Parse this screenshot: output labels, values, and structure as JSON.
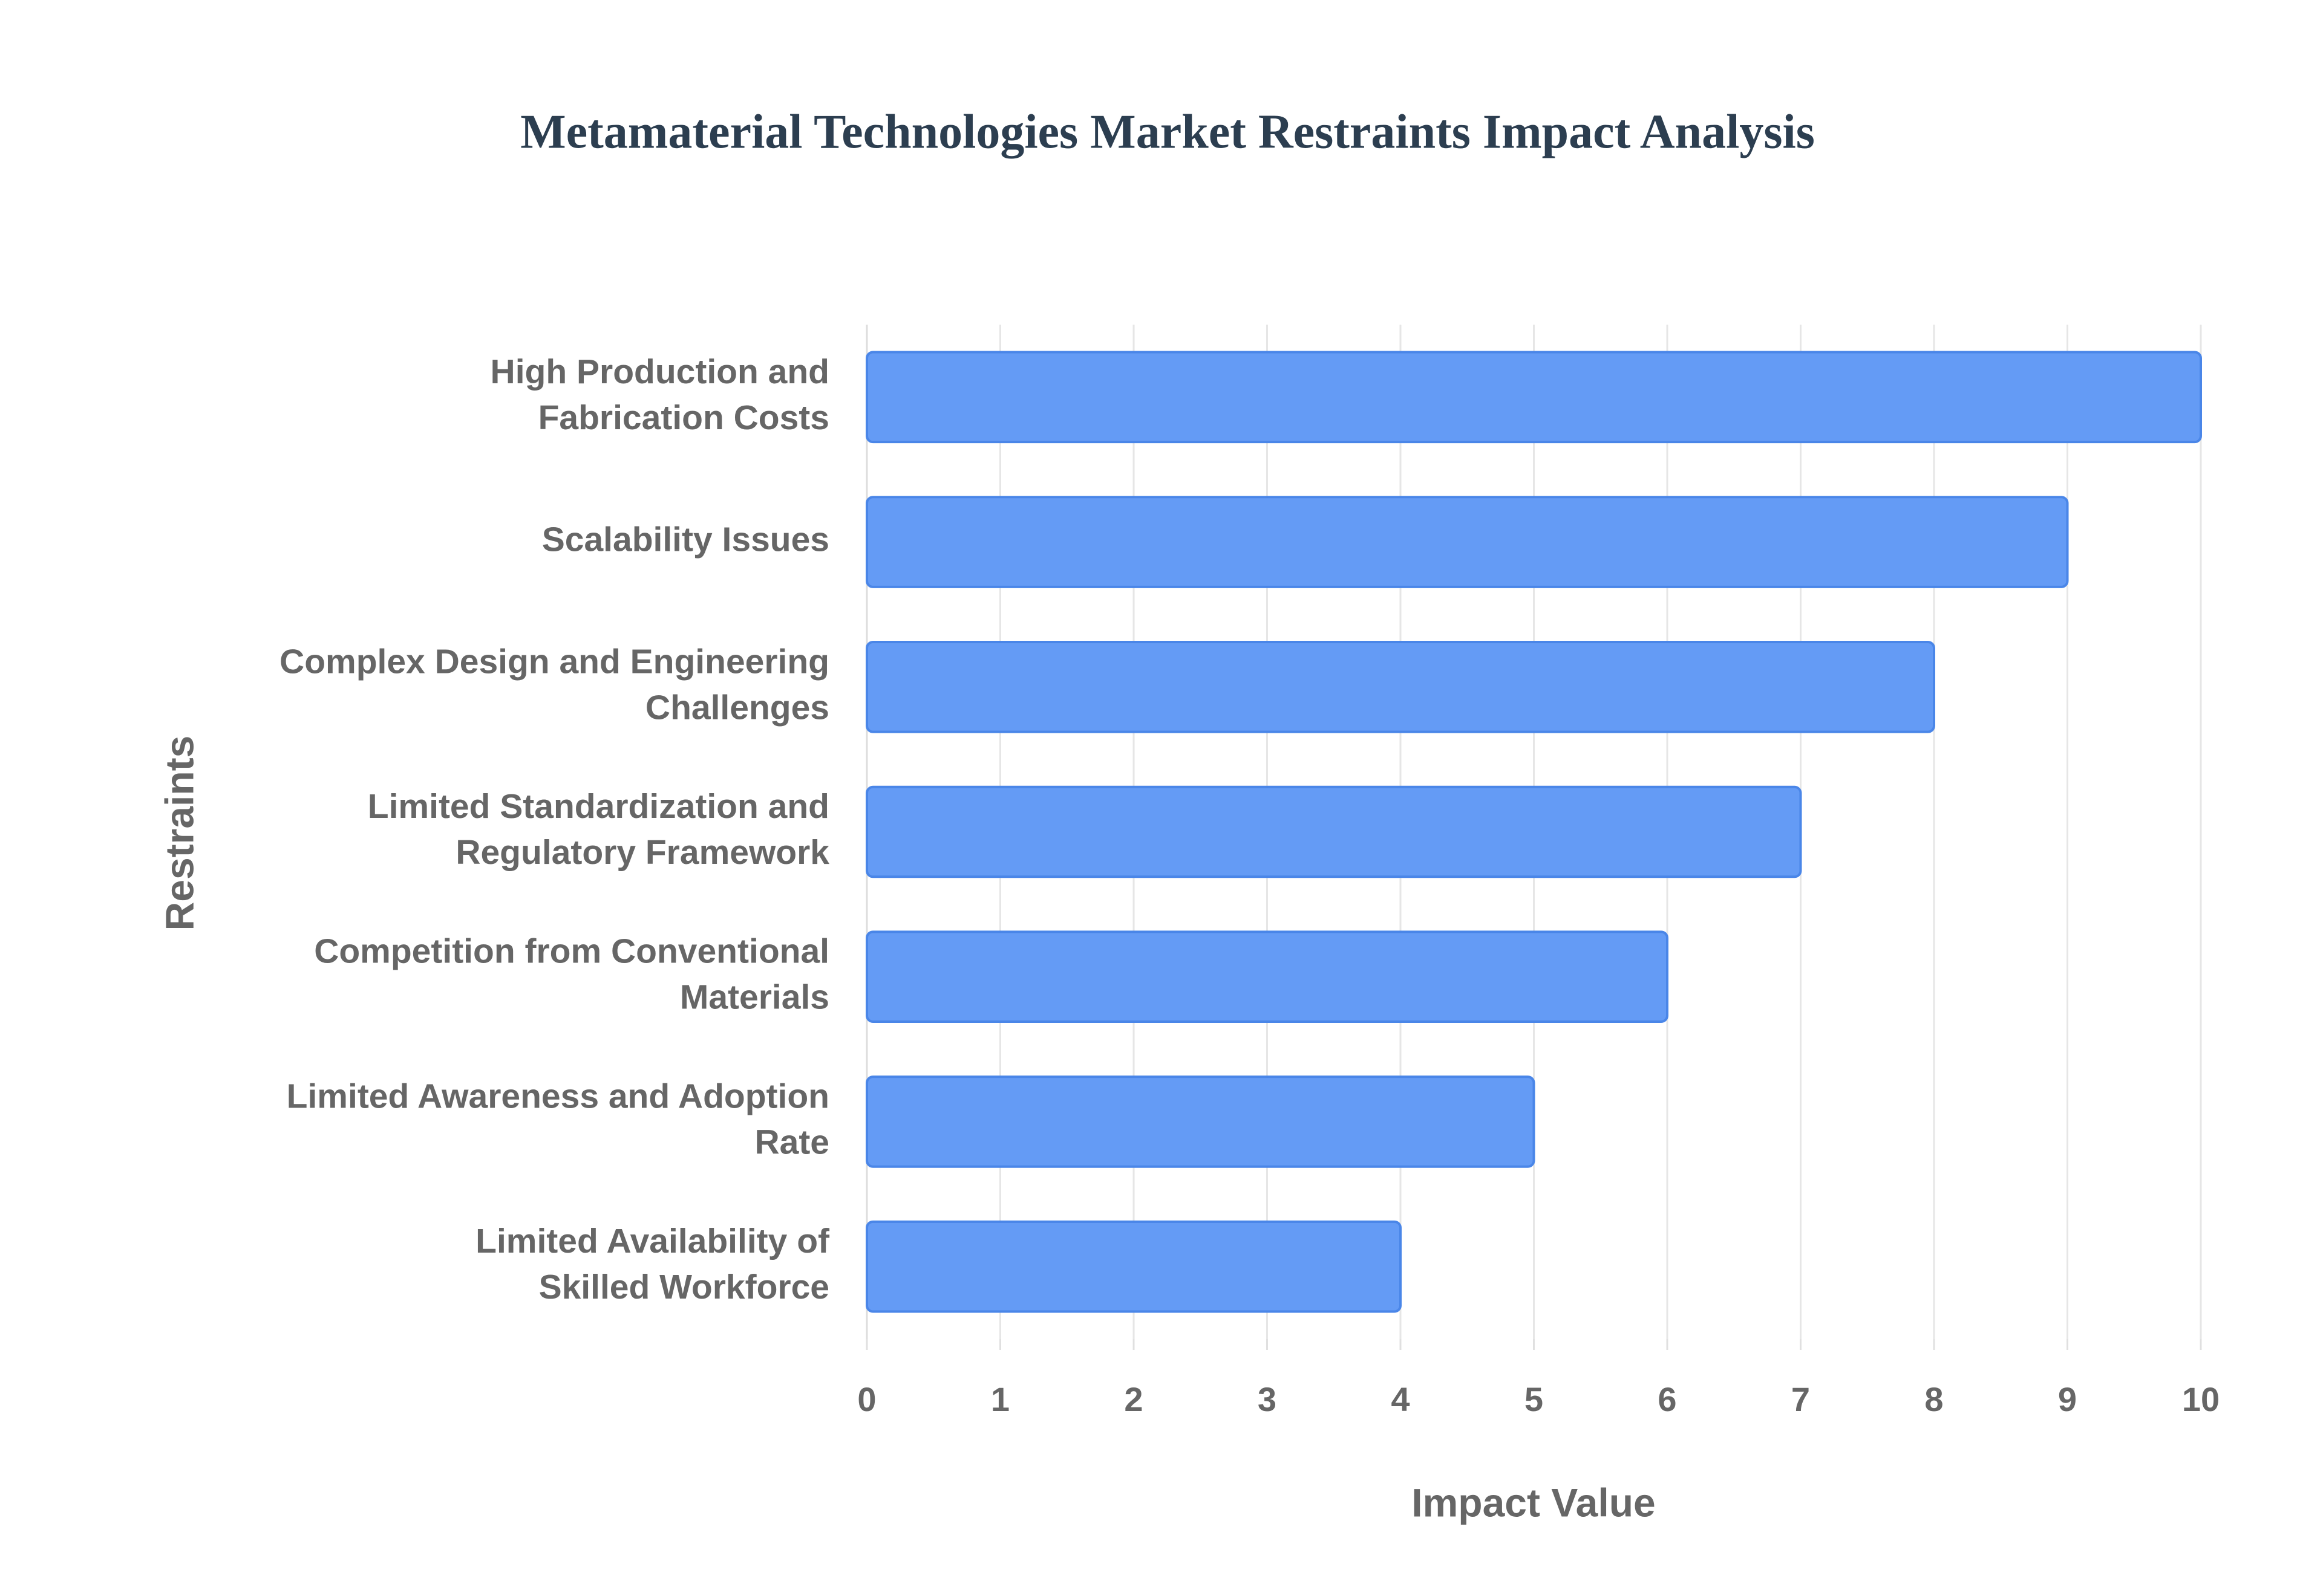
{
  "chart_data": {
    "type": "bar",
    "orientation": "horizontal",
    "title": "Metamaterial Technologies Market Restraints Impact Analysis",
    "x_label": "Impact Value",
    "y_label": "Restraints",
    "categories": [
      "High Production and Fabrication Costs",
      "Scalability Issues",
      "Complex Design and Engineering Challenges",
      "Limited Standardization and Regulatory Framework",
      "Competition from Conventional Materials",
      "Limited Awareness and Adoption Rate",
      "Limited Availability of Skilled Workforce"
    ],
    "values": [
      10,
      9,
      8,
      7,
      6,
      5,
      4
    ],
    "color": "#6199f5",
    "xlim": [
      0,
      10
    ],
    "xticks": [
      0,
      1,
      2,
      3,
      4,
      5,
      6,
      7,
      8,
      9,
      10
    ],
    "grid": true
  }
}
